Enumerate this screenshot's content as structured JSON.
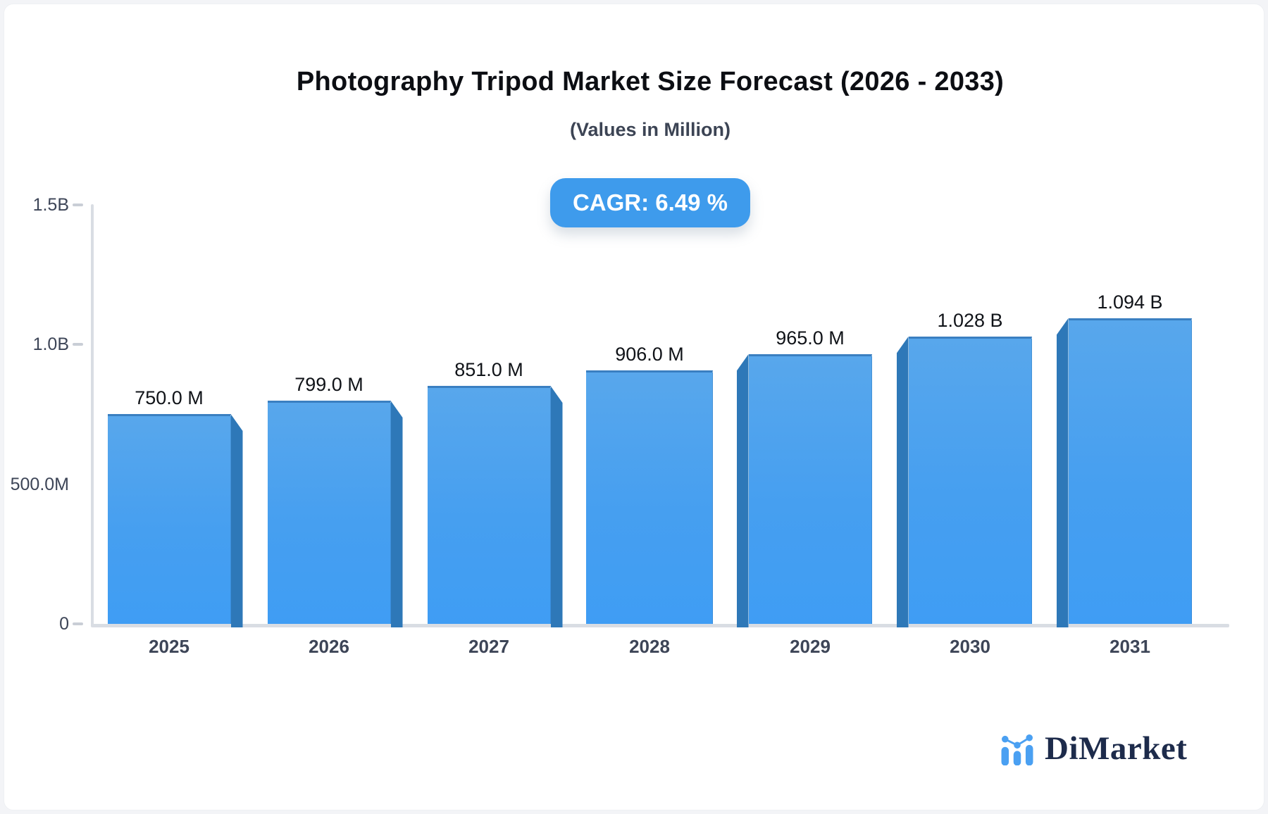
{
  "page": {
    "background_color": "#f3f4f7",
    "card_color": "#ffffff"
  },
  "header": {
    "title": "Photography Tripod Market Size Forecast (2026 - 2033)",
    "subtitle": "(Values in Million)",
    "cagr_badge": "CAGR: 6.49 %",
    "badge_color": "#3e9bec"
  },
  "chart_data": {
    "type": "bar",
    "title": "Photography Tripod Market Size Forecast (2026 - 2033)",
    "subtitle": "(Values in Million)",
    "annotation": "CAGR: 6.49 %",
    "categories": [
      "2025",
      "2026",
      "2027",
      "2028",
      "2029",
      "2030",
      "2031"
    ],
    "series": [
      {
        "name": "Market Size",
        "values_millions": [
          750,
          799,
          851,
          906,
          965,
          1028,
          1094
        ]
      }
    ],
    "value_labels": [
      "750.0 M",
      "799.0 M",
      "851.0 M",
      "906.0 M",
      "965.0 M",
      "1.028 B",
      "1.094 B"
    ],
    "y_ticks": [
      {
        "label": "1.5B",
        "value_millions": 1500,
        "has_dash": true
      },
      {
        "label": "1.0B",
        "value_millions": 1000,
        "has_dash": true
      },
      {
        "label": "500.0M",
        "value_millions": 500,
        "has_dash": false
      },
      {
        "label": "0",
        "value_millions": 0,
        "has_dash": true
      }
    ],
    "ylim_millions": [
      0,
      1500
    ],
    "grid": false,
    "legend": false,
    "bar_style": "3d-bevel",
    "colors": {
      "bar_face_top": "#58a7ec",
      "bar_face_bottom": "#3f9df4",
      "bar_side": "#2e78b8",
      "bar_top_edge": "#3a7fc1",
      "axis": "#d9dde3"
    }
  },
  "footer": {
    "logo_text": "DiMarket",
    "logo_text_color": "#1d2b4b",
    "logo_icon": "mini-bar-line-chart-icon",
    "logo_icon_color": "#4aa0f2"
  }
}
